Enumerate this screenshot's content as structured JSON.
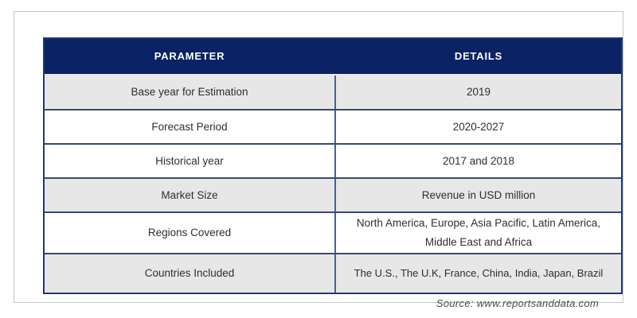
{
  "colors": {
    "header-bg": "#0b2264",
    "header-text": "#ffffff",
    "row-shaded": "#e7e7e7",
    "row-plain": "#ffffff",
    "border-horizontal": "#3a4a6e",
    "border-vertical": "#44619c",
    "table-border": "#1e3a74",
    "header-underline": "#e8ebf3",
    "card-border": "#c6c6c6",
    "cell-text": "#2f2f2f",
    "source-text": "#4c4c4c"
  },
  "table": {
    "columns": [
      "PARAMETER",
      "DETAILS"
    ],
    "rows": [
      {
        "parameter": "Base year for Estimation",
        "details": [
          "2019"
        ]
      },
      {
        "parameter": "Forecast Period",
        "details": [
          "2020-2027"
        ]
      },
      {
        "parameter": "Historical year",
        "details": [
          "2017 and 2018"
        ]
      },
      {
        "parameter": "Market Size",
        "details": [
          "Revenue in USD million"
        ]
      },
      {
        "parameter": "Regions Covered",
        "details": [
          "North America, Europe, Asia Pacific, Latin America,",
          "Middle East and Africa"
        ]
      },
      {
        "parameter": "Countries Included",
        "details": [
          "The U.S., The  U.K, France, China, India, Japan, Brazil"
        ]
      }
    ]
  },
  "footer": {
    "source_note": "Source: www.reportsanddata.com"
  }
}
